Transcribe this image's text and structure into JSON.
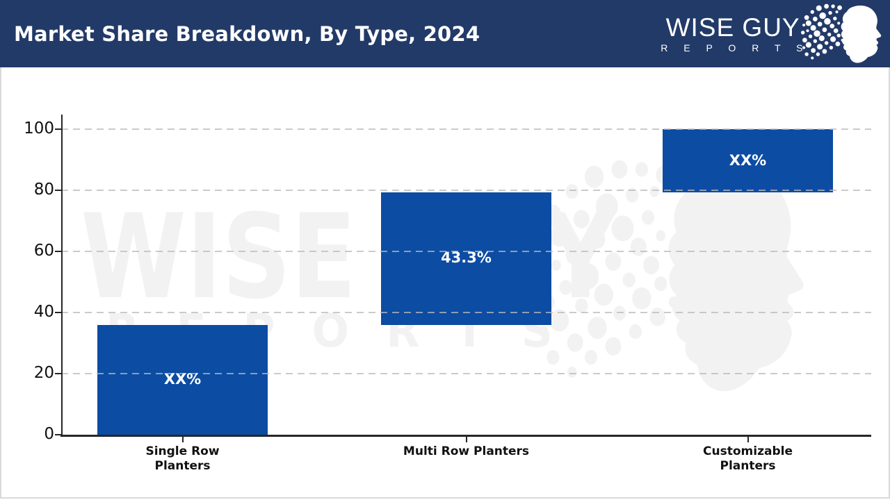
{
  "header": {
    "title": "Market Share Breakdown, By Type, 2024",
    "bg_color": "#223a68",
    "logo": {
      "line1": "WISE GUY",
      "line2": "R E P O R T S"
    }
  },
  "watermark": {
    "word1": "WISE",
    "word2": "GUY",
    "word3": "REPORTS"
  },
  "chart_data": {
    "type": "bar",
    "subtype": "floating-waterfall segments stacking to 100%",
    "title": "Market Share Breakdown, By Type, 2024",
    "categories": [
      "Single Row\nPlanters",
      "Multi Row Planters",
      "Customizable\nPlanters"
    ],
    "segments": [
      {
        "category": "Single Row Planters",
        "start": 0,
        "end": 36,
        "height_est": 36,
        "label": "XX%"
      },
      {
        "category": "Multi Row Planters",
        "start": 36,
        "end": 79.3,
        "height_est": 43.3,
        "label": "43.3%"
      },
      {
        "category": "Customizable Planters",
        "start": 79.3,
        "end": 100,
        "height_est": 20.7,
        "label": "XX%"
      }
    ],
    "xlabel": "",
    "ylabel": "",
    "ylim": [
      0,
      100
    ],
    "yticks": [
      0,
      20,
      40,
      60,
      80,
      100
    ],
    "grid": "horizontal dashed, drawn over bars",
    "legend": "none",
    "bar_color": "#0c4ca3",
    "bar_label_color": "#ffffff",
    "axis_color": "#262626",
    "grid_color": "#d2d2d2"
  }
}
